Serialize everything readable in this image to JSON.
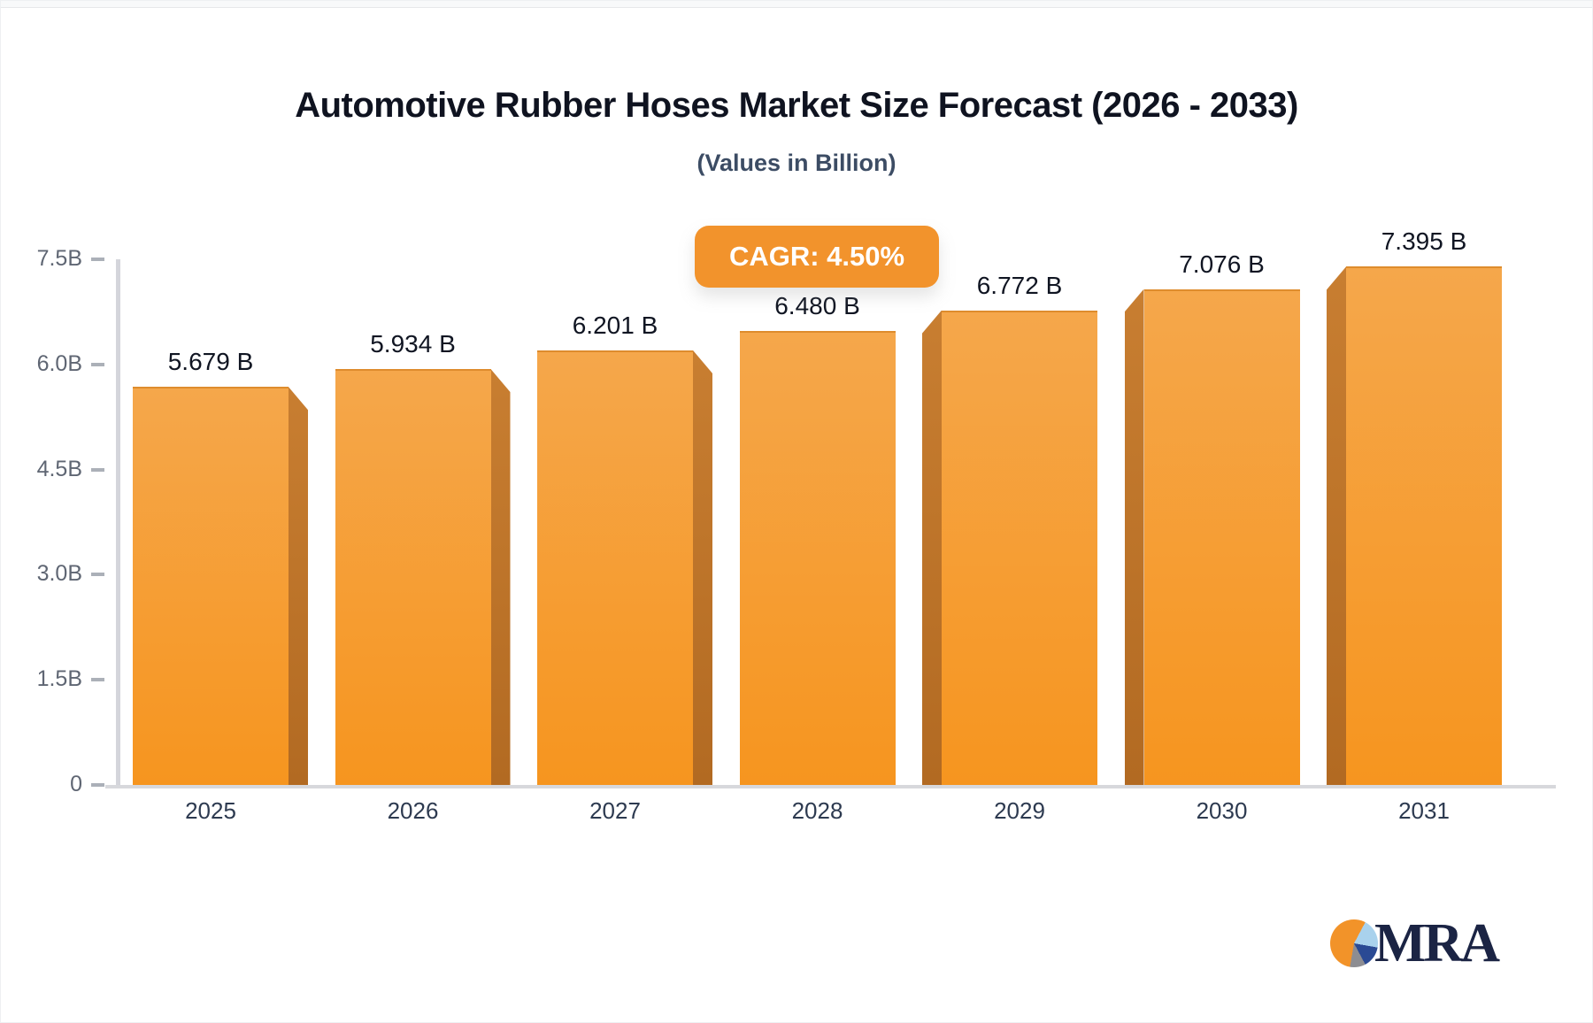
{
  "page": {
    "title": "Automotive Rubber Hoses Market Size Forecast (2026 - 2033)",
    "subtitle": "(Values in Billion)",
    "cagr_badge_label": "CAGR: 4.50%",
    "cagr_value": "4.50%"
  },
  "chart_data": {
    "type": "bar",
    "title": "Automotive Rubber Hoses Market Size Forecast (2026 - 2033)",
    "subtitle": "(Values in Billion)",
    "categories": [
      "2025",
      "2026",
      "2027",
      "2028",
      "2029",
      "2030",
      "2031"
    ],
    "values": [
      5.679,
      5.934,
      6.201,
      6.48,
      6.772,
      7.076,
      7.395
    ],
    "value_labels": [
      "5.679 B",
      "5.934 B",
      "6.201 B",
      "6.480 B",
      "6.772 B",
      "7.076 B",
      "7.395 B"
    ],
    "xlabel": "",
    "ylabel": "",
    "ylim": [
      0,
      7.5
    ],
    "yticks": [
      {
        "value": 0,
        "label": "0"
      },
      {
        "value": 1.5,
        "label": "1.5B"
      },
      {
        "value": 3.0,
        "label": "3.0B"
      },
      {
        "value": 4.5,
        "label": "4.5B"
      },
      {
        "value": 6.0,
        "label": "6.0B"
      },
      {
        "value": 7.5,
        "label": "7.5B"
      }
    ],
    "grid": false,
    "legend": "none",
    "annotation": "CAGR: 4.50%",
    "bar_effect": "3d-bevel-toward-center"
  },
  "colors": {
    "bar_face_top": "#F5A74B",
    "bar_face_bottom": "#F6951F",
    "bar_side": "#BE7230",
    "badge_bg": "#F2932C",
    "badge_text": "#FFFFFF",
    "axis_line": "#D4D5DB",
    "title_text": "#0F1320",
    "subtitle_text": "#3C4C64",
    "y_label_text": "#5F6673",
    "x_label_text": "#2D3A50"
  },
  "logo": {
    "text": "MRA"
  }
}
